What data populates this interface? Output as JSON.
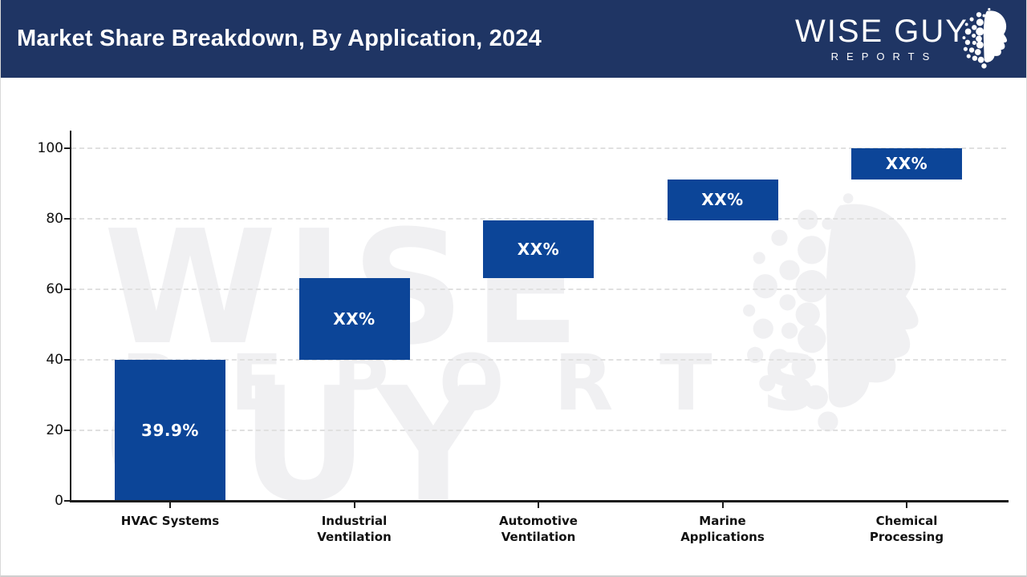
{
  "header": {
    "title": "Market Share Breakdown, By Application, 2024",
    "logo_line1": "WISE GUY",
    "logo_line2": "REPORTS"
  },
  "watermark": {
    "line1": "WISE GUY",
    "line2": "REPORTS"
  },
  "chart_data": {
    "type": "bar",
    "subtype": "waterfall",
    "title": "Market Share Breakdown, By Application, 2024",
    "xlabel": "",
    "ylabel": "",
    "categories": [
      "HVAC Systems",
      "Industrial Ventilation",
      "Automotive Ventilation",
      "Marine Applications",
      "Chemical Processing"
    ],
    "bars": [
      {
        "category": "HVAC Systems",
        "lines": [
          "HVAC Systems"
        ],
        "start": 0,
        "end": 39.9,
        "label": "39.9%"
      },
      {
        "category": "Industrial Ventilation",
        "lines": [
          "Industrial",
          "Ventilation"
        ],
        "start": 39.9,
        "end": 63.2,
        "label": "XX%"
      },
      {
        "category": "Automotive Ventilation",
        "lines": [
          "Automotive",
          "Ventilation"
        ],
        "start": 63.2,
        "end": 79.5,
        "label": "XX%"
      },
      {
        "category": "Marine Applications",
        "lines": [
          "Marine",
          "Applications"
        ],
        "start": 79.5,
        "end": 91.2,
        "label": "XX%"
      },
      {
        "category": "Chemical Processing",
        "lines": [
          "Chemical",
          "Processing"
        ],
        "start": 91.2,
        "end": 100,
        "label": "XX%"
      }
    ],
    "yticks": [
      0,
      20,
      40,
      60,
      80,
      100
    ],
    "ylim": [
      0,
      104
    ],
    "grid": "horizontal-dashed",
    "legend": "none",
    "bar_color": "#0c4598",
    "bar_label_color": "#ffffff"
  },
  "colors": {
    "header_bg": "#1f3564",
    "bar": "#0c4598",
    "axis": "#1c1c1c",
    "gridline": "#e0e0e0",
    "watermark": "#f0f0f2",
    "border": "#d9d9d9"
  }
}
